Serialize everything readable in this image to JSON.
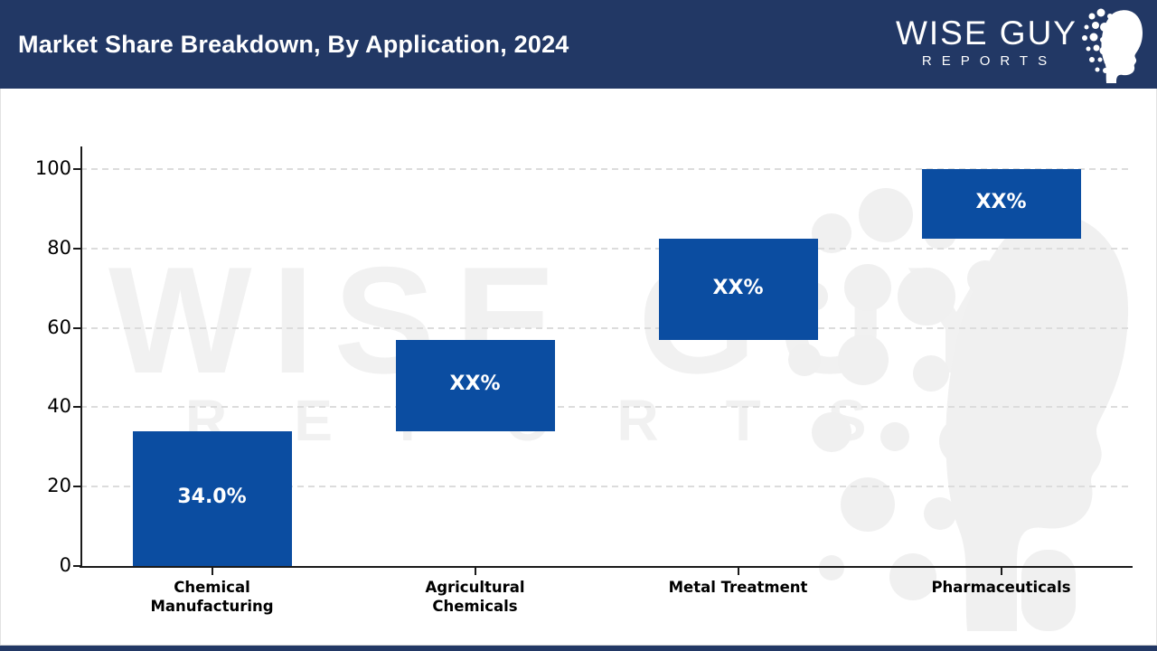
{
  "header": {
    "title": "Market Share Breakdown, By Application, 2024",
    "logo": {
      "line1": "WISE GUY",
      "line2": "REPORTS"
    }
  },
  "watermark": {
    "line1": "WISE GUY",
    "line2": "REPORTS"
  },
  "colors": {
    "header_bg": "#223865",
    "bar": "#0b4da1",
    "grid": "#dcdcdc",
    "axis": "#1a1a1a",
    "bar_label": "#ffffff",
    "watermark": "#f1f1f1"
  },
  "chart_data": {
    "type": "bar",
    "subtype": "waterfall",
    "title": "Market Share Breakdown, By Application, 2024",
    "categories": [
      "Chemical\nManufacturing",
      "Agricultural\nChemicals",
      "Metal Treatment",
      "Pharmaceuticals"
    ],
    "segments": [
      {
        "category": "Chemical Manufacturing",
        "start": 0,
        "end": 34,
        "label": "34.0%"
      },
      {
        "category": "Agricultural Chemicals",
        "start": 34,
        "end": 57,
        "label": "XX%"
      },
      {
        "category": "Metal Treatment",
        "start": 57,
        "end": 82.5,
        "label": "XX%"
      },
      {
        "category": "Pharmaceuticals",
        "start": 82.5,
        "end": 100,
        "label": "XX%"
      }
    ],
    "ylim": [
      0,
      100
    ],
    "yticks": [
      0,
      20,
      40,
      60,
      80,
      100
    ],
    "xlabel": "",
    "ylabel": "",
    "grid": "horizontal-dashed",
    "legend": "none"
  }
}
